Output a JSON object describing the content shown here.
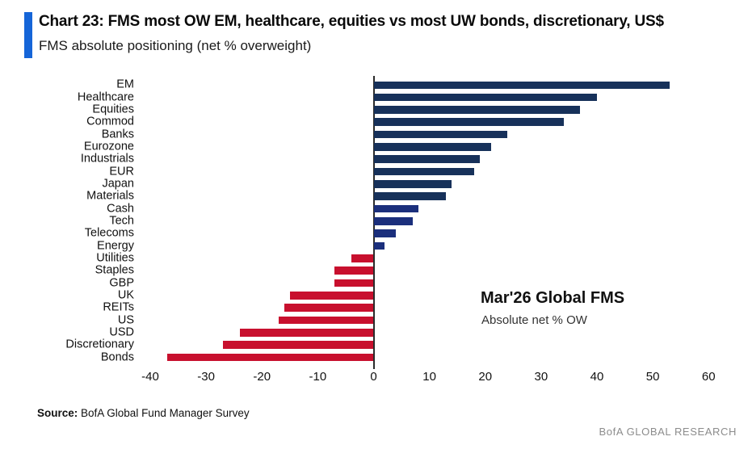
{
  "header": {
    "title": "Chart 23: FMS most OW EM, healthcare, equities vs most UW bonds, discretionary, US$",
    "subtitle": "FMS absolute positioning (net % overweight)"
  },
  "annotation": {
    "title": "Mar'26 Global FMS",
    "subtitle": "Absolute net % OW"
  },
  "footer": {
    "source_label": "Source:",
    "source_text": " BofA Global Fund Manager Survey",
    "brand": "BofA GLOBAL RESEARCH"
  },
  "colors": {
    "accent_blue": "#1565D8",
    "navy": "#17315A",
    "bright_navy": "#1B2F7C",
    "red": "#C8102E",
    "axis": "#2B2B2B",
    "brand_gray": "#8C8C8C"
  },
  "chart_data": {
    "type": "bar",
    "orientation": "horizontal",
    "title": "Mar'26 Global FMS",
    "subtitle": "Absolute net % OW",
    "xlabel": "net % overweight",
    "ylabel": "",
    "xlim": [
      -40,
      60
    ],
    "grid": false,
    "legend": false,
    "x_ticks": [
      -40,
      -30,
      -20,
      -10,
      0,
      10,
      20,
      30,
      40,
      50,
      60
    ],
    "categories": [
      "EM",
      "Healthcare",
      "Equities",
      "Commod",
      "Banks",
      "Eurozone",
      "Industrials",
      "EUR",
      "Japan",
      "Materials",
      "Cash",
      "Tech",
      "Telecoms",
      "Energy",
      "Utilities",
      "Staples",
      "GBP",
      "UK",
      "REITs",
      "US",
      "USD",
      "Discretionary",
      "Bonds"
    ],
    "values": [
      53,
      40,
      37,
      34,
      24,
      21,
      19,
      18,
      14,
      13,
      8,
      7,
      4,
      2,
      -4,
      -7,
      -7,
      -15,
      -16,
      -17,
      -24,
      -27,
      -37
    ],
    "bar_colors": [
      "#17315A",
      "#17315A",
      "#17315A",
      "#17315A",
      "#17315A",
      "#17315A",
      "#17315A",
      "#17315A",
      "#17315A",
      "#17315A",
      "#1B2F7C",
      "#1B2F7C",
      "#1B2F7C",
      "#1B2F7C",
      "#C8102E",
      "#C8102E",
      "#C8102E",
      "#C8102E",
      "#C8102E",
      "#C8102E",
      "#C8102E",
      "#C8102E",
      "#C8102E"
    ]
  }
}
